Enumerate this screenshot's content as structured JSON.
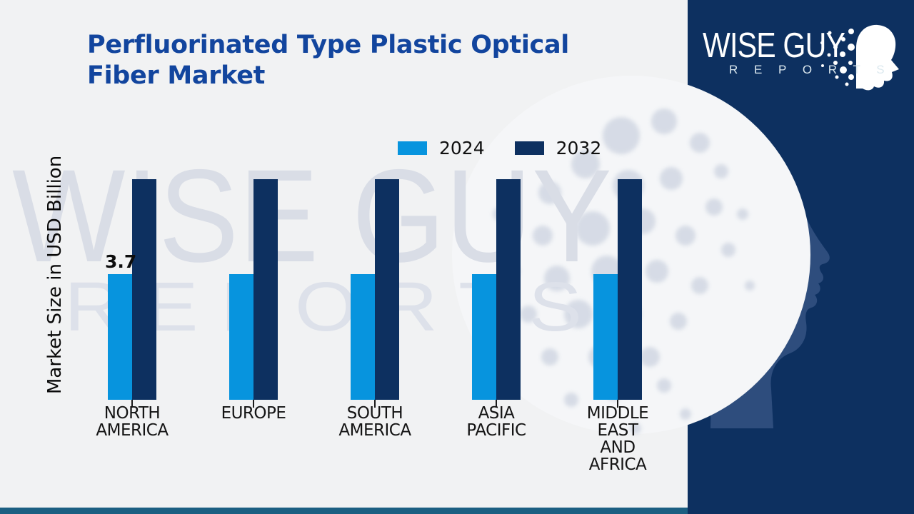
{
  "page": {
    "background_color": "#f1f2f3",
    "footer_color": "#1c5f82",
    "panel_color": "#0d3060",
    "panel_face_color": "#2e4d7d"
  },
  "header": {
    "title": "Perfluorinated Type Plastic Optical Fiber Market",
    "title_color": "#12459e"
  },
  "brand": {
    "logo_line1": "WISE GUY",
    "logo_line2": "R E P O R T S",
    "head_icon": "head-profile-with-dots"
  },
  "watermark": {
    "line1": "WISE GUY",
    "line2": "R E P O R T S"
  },
  "chart_data": {
    "type": "bar",
    "title": "Perfluorinated Type Plastic Optical Fiber Market",
    "xlabel": "",
    "ylabel": "Market Size in USD Billion",
    "categories": [
      "NORTH AMERICA",
      "EUROPE",
      "SOUTH AMERICA",
      "ASIA PACIFIC",
      "MIDDLE EAST AND AFRICA"
    ],
    "series": [
      {
        "name": "2024",
        "color": "#0794de",
        "values": [
          3.7,
          3.7,
          3.7,
          3.7,
          3.7
        ]
      },
      {
        "name": "2032",
        "color": "#0d3060",
        "values": [
          6.5,
          6.5,
          6.5,
          6.5,
          6.5
        ]
      }
    ],
    "data_labels": {
      "series": "2024",
      "values": [
        "3.7",
        "",
        "",
        "",
        ""
      ]
    },
    "legend_position": "top",
    "grid": false,
    "ylim": [
      0,
      7
    ]
  }
}
